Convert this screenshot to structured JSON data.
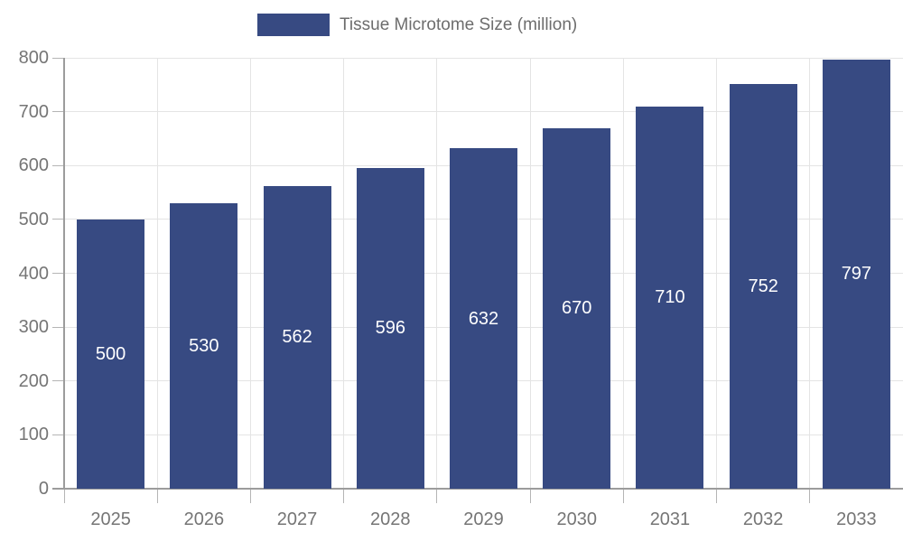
{
  "chart_data": {
    "type": "bar",
    "title": "Tissue Microtome Size (million)",
    "legend": "Tissue Microtome Size (million)",
    "legend_position": "top",
    "categories": [
      "2025",
      "2026",
      "2027",
      "2028",
      "2029",
      "2030",
      "2031",
      "2032",
      "2033"
    ],
    "values": [
      500,
      530,
      562,
      596,
      632,
      670,
      710,
      752,
      797
    ],
    "xlabel": "",
    "ylabel": "",
    "ylim": [
      0,
      800
    ],
    "yticks": [
      0,
      100,
      200,
      300,
      400,
      500,
      600,
      700,
      800
    ],
    "grid": true,
    "data_labels_inside_bars": true,
    "colors": {
      "bar": "#374a82",
      "bar_label_text": "#ffffff",
      "legend_text": "#6d6d6d",
      "axis_text": "#757575",
      "gridline": "#e4e4e4",
      "axis_line": "#9c9c9c",
      "tick": "#b5b5b5",
      "background": "#ffffff"
    }
  }
}
